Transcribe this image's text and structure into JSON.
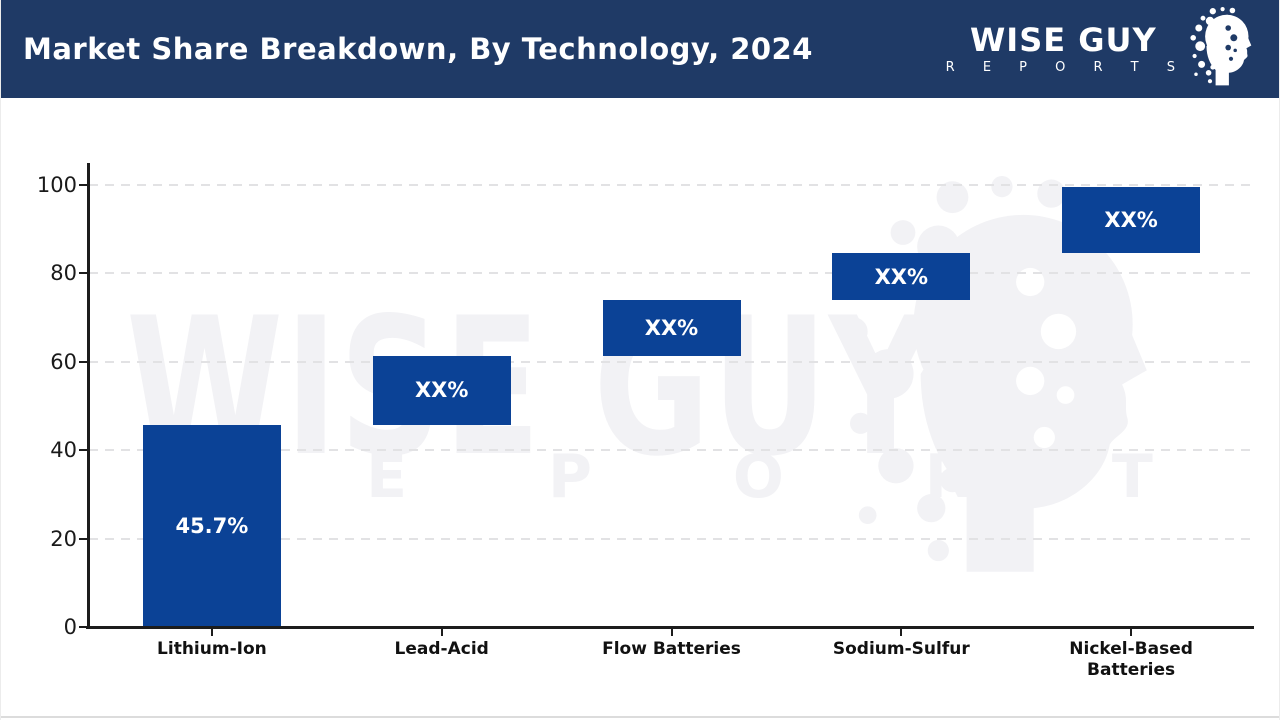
{
  "header": {
    "title": "Market Share Breakdown, By Technology, 2024",
    "bg_color": "#1f3a66",
    "logo": {
      "wordmark": "WISE GUY",
      "subtext": "R E P O R T S"
    }
  },
  "watermark": {
    "wordmark": "WISE GUY",
    "subtext": "R E P O R T S"
  },
  "chart_data": {
    "type": "bar",
    "subtype": "waterfall",
    "title": "Market Share Breakdown, By Technology, 2024",
    "unit": "percent market share",
    "categories": [
      "Lithium-Ion",
      "Lead-Acid",
      "Flow Batteries",
      "Sodium-Sulfur",
      "Nickel-Based Batteries"
    ],
    "segments": [
      {
        "category": "Lithium-Ion",
        "start": 0,
        "end": 45.7,
        "label": "45.7%"
      },
      {
        "category": "Lead-Acid",
        "start": 45.7,
        "end": 61.3,
        "label": "XX%"
      },
      {
        "category": "Flow Batteries",
        "start": 61.3,
        "end": 73.9,
        "label": "XX%"
      },
      {
        "category": "Sodium-Sulfur",
        "start": 73.9,
        "end": 84.5,
        "label": "XX%"
      },
      {
        "category": "Nickel-Based Batteries",
        "start": 84.5,
        "end": 99.5,
        "label": "XX%"
      }
    ],
    "yticks": [
      0,
      20,
      40,
      60,
      80,
      100
    ],
    "ylim": [
      0,
      105
    ],
    "grid": "horizontal-dashed",
    "legend": "none",
    "colors": {
      "bar": "#0b4296",
      "bar_label": "#ffffff",
      "header_bg": "#1f3a66",
      "axis": "#1c1c1c",
      "grid": "#e2e2e4",
      "tick_label": "#1a1a1a",
      "watermark": "#f2f2f5"
    }
  }
}
